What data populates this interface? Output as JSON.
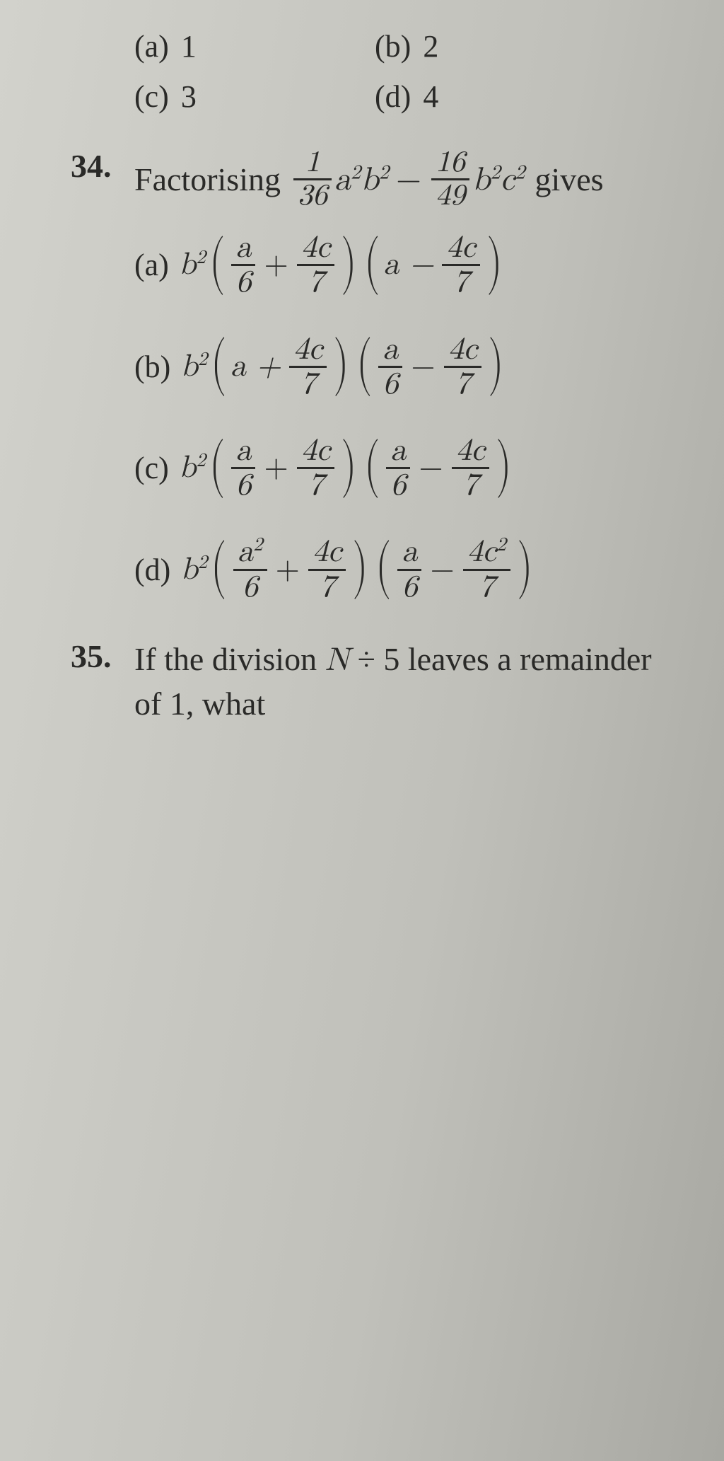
{
  "page": {
    "background_gradient": [
      "#d2d2cc",
      "#c0c0ba",
      "#a8a8a2"
    ],
    "text_color": "#2a2a28",
    "frac_bar_color": "#2a2a28"
  },
  "prev_options": {
    "a": {
      "label": "(a)",
      "value": "1"
    },
    "b": {
      "label": "(b)",
      "value": "2"
    },
    "c": {
      "label": "(c)",
      "value": "3"
    },
    "d": {
      "label": "(d)",
      "value": "4"
    }
  },
  "q34": {
    "number": "34.",
    "lead": "Factorising",
    "expr": {
      "coef1_num": "1",
      "coef1_den": "36",
      "term1_tail_html": "a<sup>2</sup>b<sup>2</sup>",
      "minus": "−",
      "coef2_num": "16",
      "coef2_den": "49",
      "term2_tail_html": "b<sup>2</sup>c<sup>2</sup>"
    },
    "tail": "gives",
    "options": {
      "a": {
        "label": "(a)",
        "pre_html": "b<sup>2</sup>",
        "p1_num": "a",
        "p1_den": "6",
        "p1_op": "+",
        "p1_rnum": "4c",
        "p1_rden": "7",
        "p2_lnum": "",
        "p2_lden": "",
        "p2_text": "a −",
        "p2_rnum": "4c",
        "p2_rden": "7",
        "style": "a"
      },
      "b": {
        "label": "(b)",
        "pre_html": "b<sup>2</sup>",
        "p1_text": "a +",
        "p1_rnum": "4c",
        "p1_rden": "7",
        "p2_lnum": "a",
        "p2_lden": "6",
        "p2_op": "−",
        "p2_rnum": "4c",
        "p2_rden": "7",
        "style": "b"
      },
      "c": {
        "label": "(c)",
        "pre_html": "b<sup>2</sup>",
        "p1_num": "a",
        "p1_den": "6",
        "p1_op": "+",
        "p1_rnum": "4c",
        "p1_rden": "7",
        "p2_lnum": "a",
        "p2_lden": "6",
        "p2_op": "−",
        "p2_rnum": "4c",
        "p2_rden": "7",
        "style": "c"
      },
      "d": {
        "label": "(d)",
        "pre_html": "b<sup>2</sup>",
        "p1_num_html": "a<sup>2</sup>",
        "p1_den": "6",
        "p1_op": "+",
        "p1_rnum": "4c",
        "p1_rden": "7",
        "p2_lnum": "a",
        "p2_lden": "6",
        "p2_op": "−",
        "p2_rnum_html": "4c<sup>2</sup>",
        "p2_rden": "7",
        "style": "d"
      }
    }
  },
  "q35": {
    "number": "35.",
    "text_parts": [
      "If the division ",
      " ÷ 5 leaves a remainder of 1, what"
    ],
    "var": "N"
  }
}
